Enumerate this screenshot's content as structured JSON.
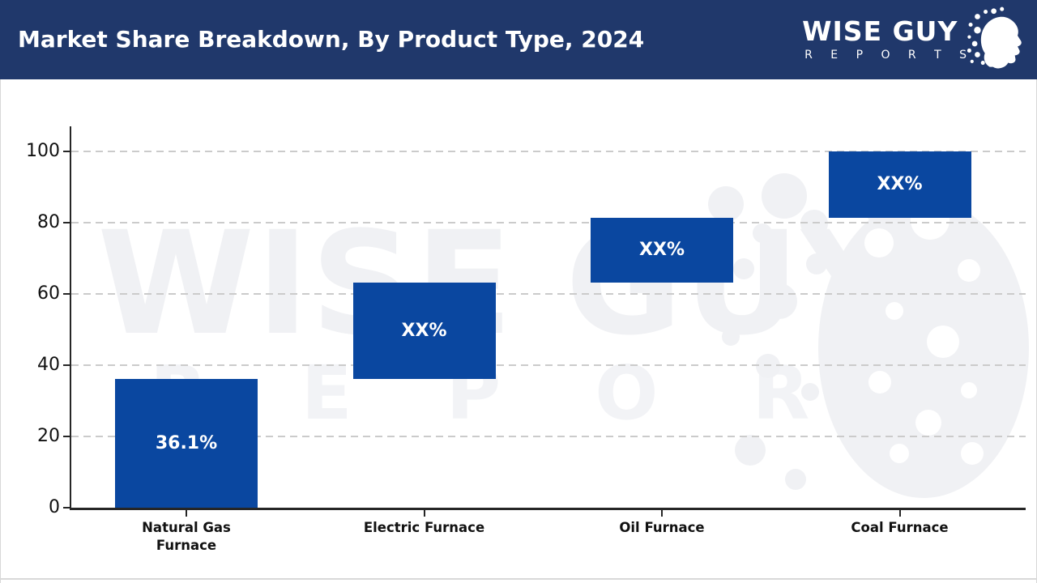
{
  "header": {
    "title": "Market Share Breakdown, By Product Type, 2024",
    "background_color": "#20386b",
    "logo": {
      "name_line": "WISE GUY",
      "sub_line": "R E P O R T S"
    }
  },
  "watermark": {
    "name_line": "WISE GUY",
    "sub_line": "R E P O R T S"
  },
  "chart_data": {
    "type": "bar",
    "variant": "waterfall_segments",
    "title": "Market Share Breakdown, By Product Type, 2024",
    "categories": [
      "Natural Gas Furnace",
      "Electric Furnace",
      "Oil Furnace",
      "Coal Furnace"
    ],
    "bars": [
      {
        "category": "Natural Gas Furnace",
        "value_label": "36.1%",
        "from": 0,
        "to": 36.1
      },
      {
        "category": "Electric Furnace",
        "value_label": "XX%",
        "from": 36.1,
        "to": 63.2
      },
      {
        "category": "Oil Furnace",
        "value_label": "XX%",
        "from": 63.2,
        "to": 81.4
      },
      {
        "category": "Coal Furnace",
        "value_label": "XX%",
        "from": 81.4,
        "to": 100
      }
    ],
    "y_ticks": [
      0,
      20,
      40,
      60,
      80,
      100
    ],
    "ylim": [
      0,
      107
    ],
    "xlabel": "",
    "ylabel": "",
    "grid": "horizontal-dashed",
    "legend": "none",
    "bar_color": "#0a47a0",
    "bar_label_color": "#ffffff",
    "axis_color": "#262626",
    "gridline_color": "#cbcbcb"
  }
}
